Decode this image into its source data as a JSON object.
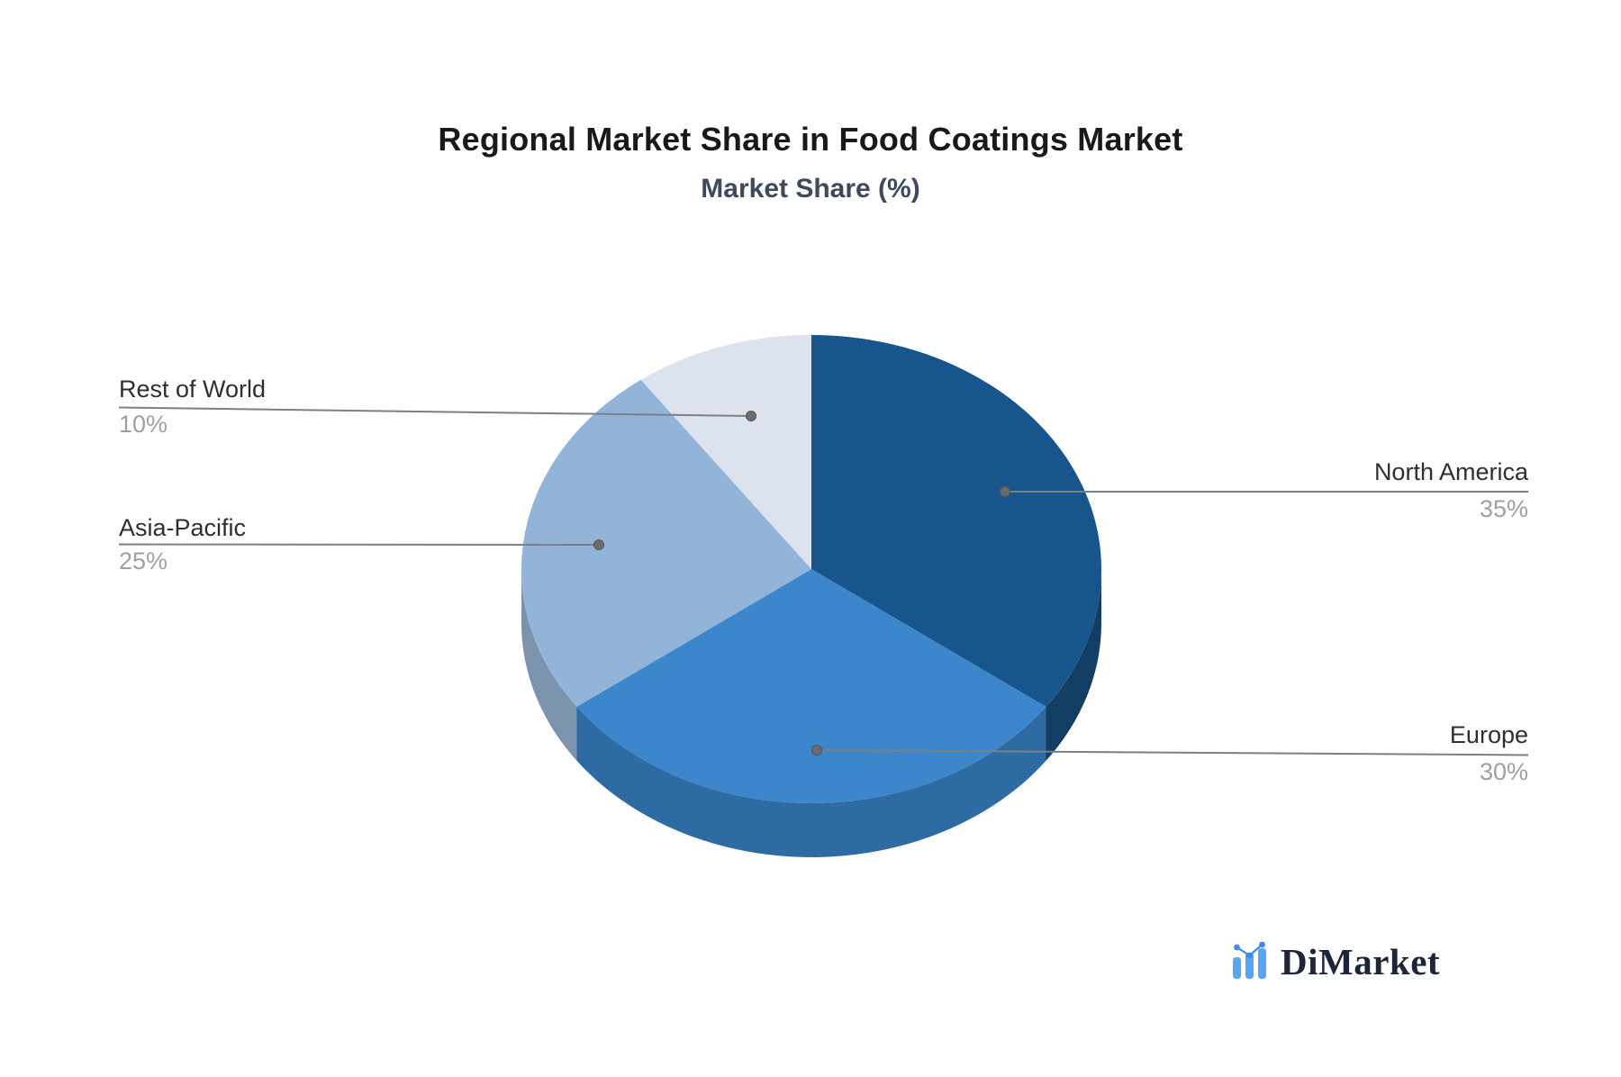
{
  "chart_data": {
    "type": "pie",
    "style": "3d-depth",
    "title": "Regional Market Share in Food Coatings Market",
    "subtitle": "Market Share (%)",
    "unit": "%",
    "categories": [
      "North America",
      "Europe",
      "Asia-Pacific",
      "Rest of World"
    ],
    "values": [
      35,
      30,
      25,
      10
    ],
    "value_labels": [
      "35%",
      "30%",
      "25%",
      "10%"
    ],
    "colors_top": [
      "#17558C",
      "#3C87CB",
      "#92B4D9",
      "#DCE3EF"
    ],
    "colors_side": [
      "#123E66",
      "#2E6BA2",
      "#7B93AD",
      "#B9C4D6"
    ],
    "start_angle_deg": 0,
    "direction": "clockwise",
    "legend": "none",
    "label_position": "outside-leader-lines",
    "leader_line_color": "#7f7f7f",
    "label_name_color": "#2f2f2f",
    "label_value_color": "#a0a0a0",
    "background": "#ffffff"
  },
  "brand": {
    "name": "DiMarket",
    "icon": "bar-line-chart-icon",
    "icon_bar_color": "#58a5f6",
    "icon_line_color": "#3d8bf0",
    "text_color": "#1c2638"
  }
}
